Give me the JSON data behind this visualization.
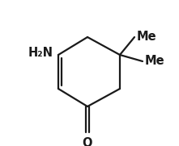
{
  "background_color": "#ffffff",
  "bond_color": "#1a1a1a",
  "text_color": "#1a1a1a",
  "label_NH2": "H₂N",
  "label_O": "O",
  "label_Me1": "Me",
  "label_Me2": "Me",
  "figsize": [
    2.21,
    1.81
  ],
  "dpi": 100,
  "lw": 1.6,
  "fs_labels": 10.5
}
